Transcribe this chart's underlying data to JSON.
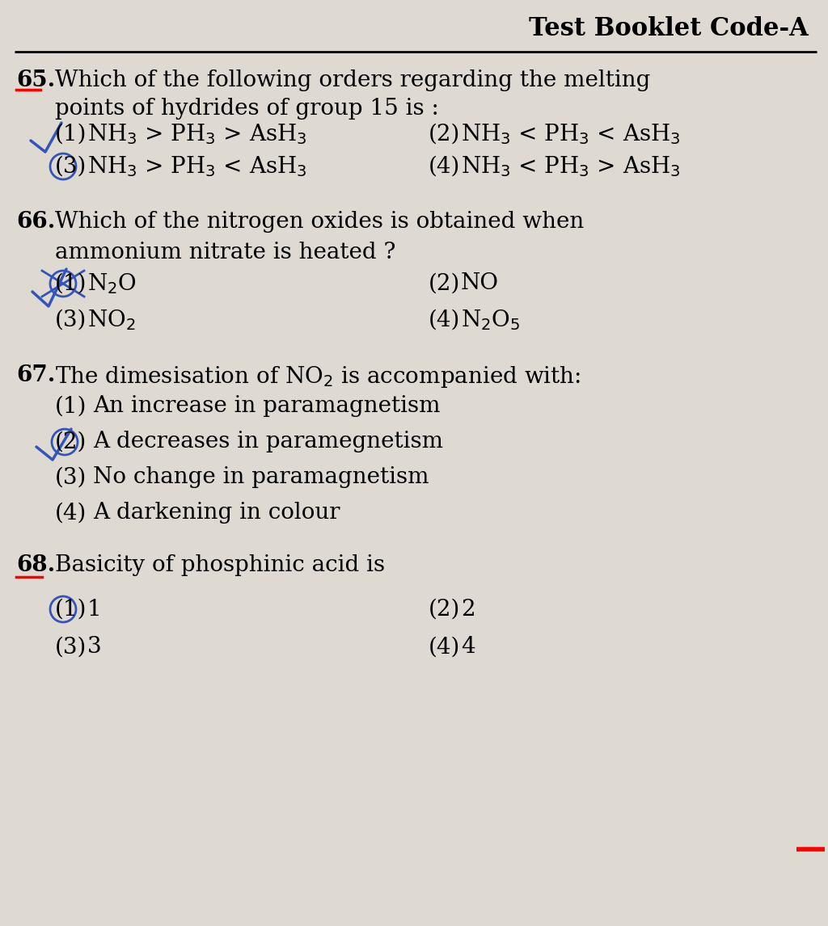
{
  "background_color": "#dedad2",
  "header_text": "Test Booklet Code-A",
  "header_fontsize": 22,
  "q65_num": "65.",
  "q65_line1": "Which of the following orders regarding the melting",
  "q65_line2": "points of hydrides of group 15 is :",
  "q65_opts": [
    {
      "num": "(1)",
      "text": "NH$_3$ > PH$_3$ > AsH$_3$",
      "col": 0,
      "circled": false,
      "checked": true
    },
    {
      "num": "(2)",
      "text": "NH$_3$ < PH$_3$ < AsH$_3$",
      "col": 1,
      "circled": false
    },
    {
      "num": "(3)",
      "text": "NH$_3$ > PH$_3$ < AsH$_3$",
      "col": 0,
      "circled": true
    },
    {
      "num": "(4)",
      "text": "NH$_3$ < PH$_3$ > AsH$_3$",
      "col": 1,
      "circled": false
    }
  ],
  "q66_num": "66.",
  "q66_line1": "Which of the nitrogen oxides is obtained when",
  "q66_line2": "ammonium nitrate is heated ?",
  "q66_opts": [
    {
      "num": "(1)",
      "text": "N$_2$O",
      "col": 0,
      "circled": true
    },
    {
      "num": "(2)",
      "text": "NO",
      "col": 1,
      "circled": false
    },
    {
      "num": "(3)",
      "text": "NO$_2$",
      "col": 0,
      "circled": false
    },
    {
      "num": "(4)",
      "text": "N$_2$O$_5$",
      "col": 1,
      "circled": false
    }
  ],
  "q67_num": "67.",
  "q67_text": "The dimesisation of NO$_2$ is accompanied with:",
  "q67_opts": [
    {
      "num": "(1)",
      "text": "An increase in paramagnetism",
      "circled": false
    },
    {
      "num": "(2)",
      "text": "A decreases in paramegnetism",
      "circled": true
    },
    {
      "num": "(3)",
      "text": "No change in paramagnetism",
      "circled": false
    },
    {
      "num": "(4)",
      "text": "A darkening in colour",
      "circled": false
    }
  ],
  "q68_num": "68.",
  "q68_text": "Basicity of phosphinic acid is",
  "q68_opts": [
    {
      "num": "(1)",
      "text": "1",
      "col": 0,
      "circled": true
    },
    {
      "num": "(2)",
      "text": "2",
      "col": 1,
      "circled": false
    },
    {
      "num": "(3)",
      "text": "3",
      "col": 0,
      "circled": false
    },
    {
      "num": "(4)",
      "text": "4",
      "col": 1,
      "circled": false
    }
  ],
  "text_fontsize": 20,
  "opt_fontsize": 20,
  "qnum_fontsize": 20
}
